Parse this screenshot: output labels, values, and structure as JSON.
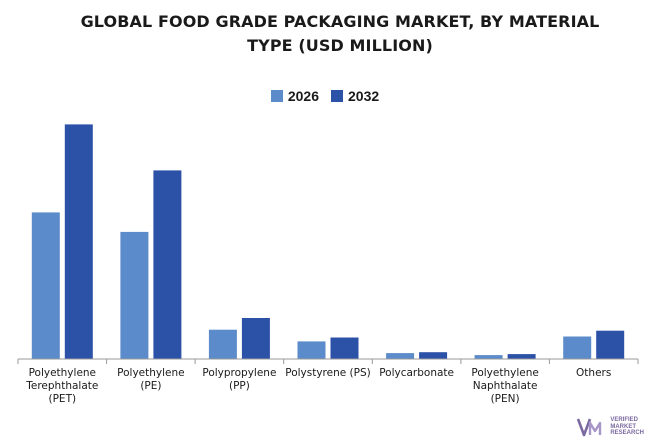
{
  "chart_data": {
    "type": "bar",
    "title": "GLOBAL FOOD GRADE PACKAGING MARKET, BY MATERIAL TYPE (USD MILLION)",
    "categories": [
      [
        "Polyethylene",
        "Terephthalate",
        "(PET)"
      ],
      [
        "Polyethylene",
        "(PE)"
      ],
      [
        "Polypropylene",
        "(PP)"
      ],
      [
        "Polystyrene (PS)"
      ],
      [
        "Polycarbonate"
      ],
      [
        "Polyethylene",
        "Naphthalate",
        "(PEN)"
      ],
      [
        "Others"
      ]
    ],
    "series": [
      {
        "name": "2026",
        "color": "#5b8bcb",
        "values": [
          150,
          130,
          30,
          18,
          6,
          4,
          23
        ]
      },
      {
        "name": "2032",
        "color": "#2c52a8",
        "values": [
          240,
          193,
          42,
          22,
          7,
          5,
          29
        ]
      }
    ],
    "ylim": [
      0,
      265
    ],
    "grid": false,
    "legend_position": "top-center",
    "xlabel": "",
    "ylabel": ""
  },
  "watermark": {
    "logo_icon": "vmr-logo-icon",
    "lines": [
      "VERIFIED",
      "MARKET",
      "RESEARCH"
    ]
  }
}
